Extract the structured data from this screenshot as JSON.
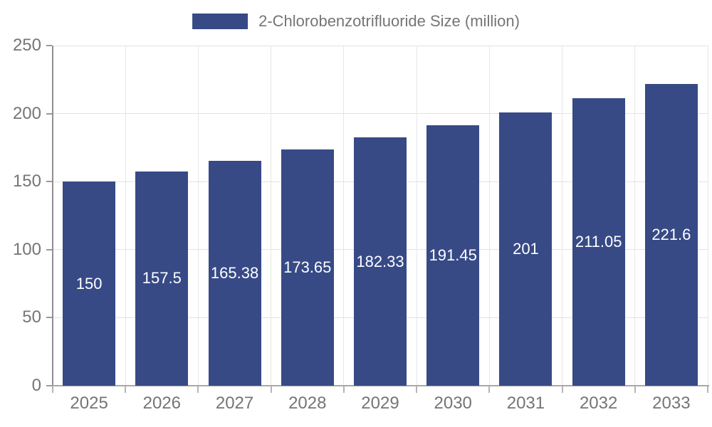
{
  "chart_data": {
    "type": "bar",
    "title": "",
    "legend": "2-Chlorobenzotrifluoride Size (million)",
    "legend_position": "top",
    "categories": [
      "2025",
      "2026",
      "2027",
      "2028",
      "2029",
      "2030",
      "2031",
      "2032",
      "2033"
    ],
    "series": [
      {
        "name": "2-Chlorobenzotrifluoride Size (million)",
        "values": [
          150,
          157.5,
          165.38,
          173.65,
          182.33,
          191.45,
          201,
          211.05,
          221.6
        ]
      }
    ],
    "value_labels": [
      "150",
      "157.5",
      "165.38",
      "173.65",
      "182.33",
      "191.45",
      "201",
      "211.05",
      "221.6"
    ],
    "xlabel": "",
    "ylabel": "",
    "ylim": [
      0,
      250
    ],
    "yticks": [
      0,
      50,
      100,
      150,
      200,
      250
    ],
    "grid": true,
    "colors": {
      "bar": "#374a86",
      "value_label_text": "#ffffff",
      "axis_text": "#757575",
      "gridline": "#e2e2e2",
      "y_axis_line": "#8f8f8f",
      "x_axis_line": "#a8a8a8",
      "background": "#ffffff"
    }
  }
}
